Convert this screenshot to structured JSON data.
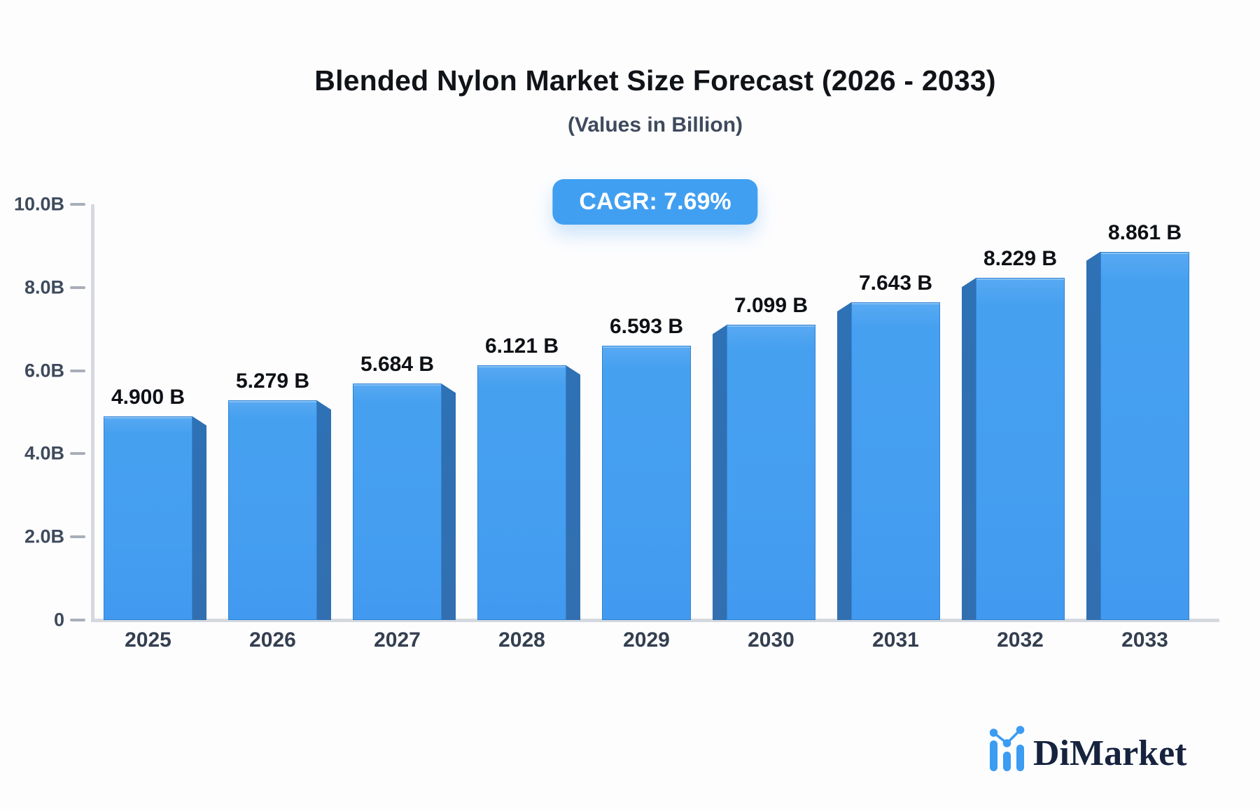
{
  "title": "Blended Nylon Market Size Forecast (2026 - 2033)",
  "subtitle": "(Values in Billion)",
  "cagr_badge_label": "CAGR: 7.69%",
  "chart_data": {
    "type": "bar",
    "title": "Blended Nylon Market Size Forecast (2026 - 2033)",
    "subtitle": "(Values in Billion)",
    "cagr": "7.69%",
    "categories": [
      "2025",
      "2026",
      "2027",
      "2028",
      "2029",
      "2030",
      "2031",
      "2032",
      "2033"
    ],
    "values": [
      4.9,
      5.279,
      5.684,
      6.121,
      6.593,
      7.099,
      7.643,
      8.229,
      8.861
    ],
    "value_labels": [
      "4.900 B",
      "5.279 B",
      "5.684 B",
      "6.121 B",
      "6.593 B",
      "7.099 B",
      "7.643 B",
      "8.229 B",
      "8.861 B"
    ],
    "unit": "Billion",
    "xlabel": "",
    "ylabel": "",
    "ylim": [
      0,
      10
    ],
    "grid": false,
    "legend": false,
    "y_ticks": [
      {
        "value": 0,
        "label": "0"
      },
      {
        "value": 2,
        "label": "2.0B"
      },
      {
        "value": 4,
        "label": "4.0B"
      },
      {
        "value": 6,
        "label": "6.0B"
      },
      {
        "value": 8,
        "label": "8.0B"
      },
      {
        "value": 10,
        "label": "10.0B"
      }
    ]
  },
  "colors": {
    "bar_face": "#459ef0",
    "bar_side": "#2f72b6",
    "badge_background": "#419ff1",
    "badge_text": "#ffffff",
    "axis": "#d5d9df",
    "tick_dash": "#a9afb9",
    "title_text": "#101317",
    "subtitle_text": "#3e4a5c",
    "year_label_text": "#343f50",
    "value_label_text": "#0d1014",
    "logo_text": "#16233e",
    "logo_icon": "#3b9cf2"
  },
  "logo": {
    "text": "DiMarket",
    "icon": "mini-bar-line-chart-icon"
  }
}
